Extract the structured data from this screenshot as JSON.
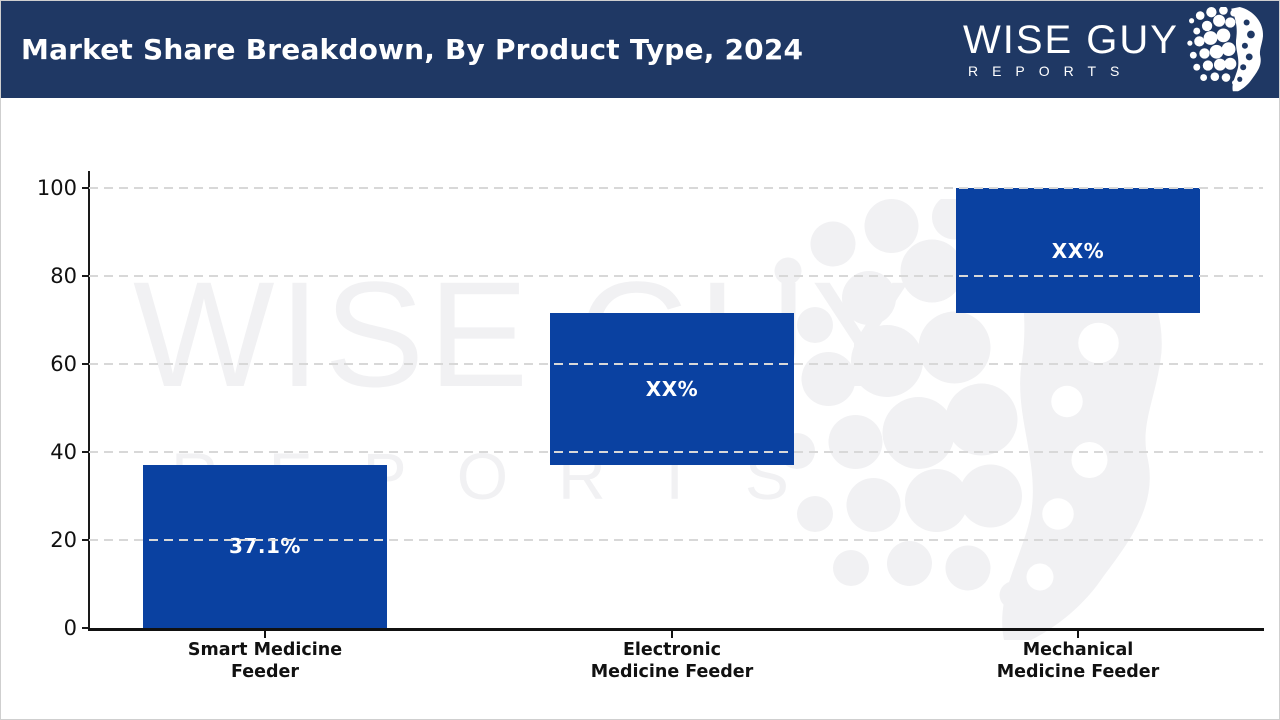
{
  "header": {
    "title": "Market Share Breakdown, By Product Type, 2024",
    "logo": {
      "line1": "WISE GUY",
      "line2": "REPORTS"
    }
  },
  "watermark": {
    "line1": "WISE GUY",
    "line2": "REPORTS"
  },
  "colors": {
    "navy": "#1f3864",
    "bar_blue": "#0a41a1",
    "gridline": "#d8d8d8",
    "watermark_gray": "#f1f1f3",
    "axis_black": "#111111",
    "bar_label_white": "#ffffff"
  },
  "chart_data": {
    "type": "bar",
    "subtype": "waterfall-cumulative",
    "title": "Market Share Breakdown, By Product Type, 2024",
    "categories": [
      "Smart Medicine Feeder",
      "Electronic Medicine Feeder",
      "Mechanical Medicine Feeder"
    ],
    "category_lines": [
      [
        "Smart Medicine",
        "Feeder"
      ],
      [
        "Electronic",
        "Medicine Feeder"
      ],
      [
        "Mechanical",
        "Medicine Feeder"
      ]
    ],
    "segments": [
      {
        "category": "Smart Medicine Feeder",
        "start": 0,
        "end": 37.1,
        "label": "37.1%"
      },
      {
        "category": "Electronic Medicine Feeder",
        "start": 37.1,
        "end": 71.5,
        "label": "XX%"
      },
      {
        "category": "Mechanical Medicine Feeder",
        "start": 71.5,
        "end": 100,
        "label": "XX%"
      }
    ],
    "yticks": [
      0,
      20,
      40,
      60,
      80,
      100
    ],
    "ylim": [
      0,
      104
    ],
    "xlabel": "",
    "ylabel": "",
    "grid": "horizontal-dashed",
    "legend": "none",
    "bar_color": "#0a41a1"
  }
}
